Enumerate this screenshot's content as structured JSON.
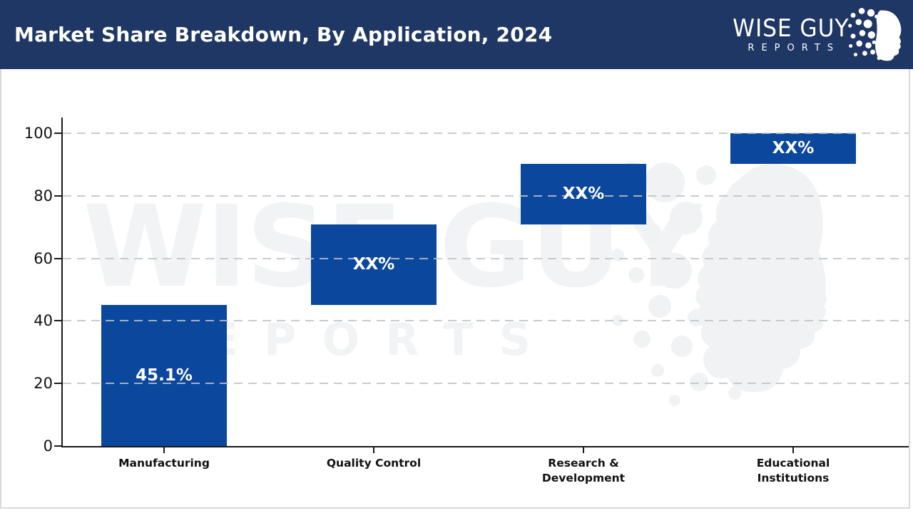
{
  "header": {
    "title": "Market Share Breakdown, By Application, 2024",
    "logo": {
      "name": "WISE GUY",
      "sub": "REPORTS"
    }
  },
  "watermark": {
    "line1": "WISE GUY",
    "line2": "REPORTS"
  },
  "colors": {
    "header_bg": "#1F3765",
    "bar_blue": "#0A479D",
    "bar_label": "#ffffff",
    "grid_gray": "#d9d9d9",
    "axis_black": "#1a1a1a",
    "watermark_gray": "#f2f3f5"
  },
  "chart_data": {
    "type": "bar",
    "variant": "waterfall",
    "title": "Market Share Breakdown, By Application, 2024",
    "categories": [
      "Manufacturing",
      "Quality Control",
      "Research & Development",
      "Educational Institutions"
    ],
    "category_label_lines": [
      [
        "Manufacturing"
      ],
      [
        "Quality Control"
      ],
      [
        "Research &",
        "Development"
      ],
      [
        "Educational",
        "Institutions"
      ]
    ],
    "segments": [
      {
        "category": "Manufacturing",
        "start": 0,
        "end": 45.1,
        "label": "45.1%",
        "estimated_value": 45.1
      },
      {
        "category": "Quality Control",
        "start": 45.1,
        "end": 70.9,
        "label": "XX%",
        "estimated_value": 25.8
      },
      {
        "category": "Research & Development",
        "start": 70.9,
        "end": 90.3,
        "label": "XX%",
        "estimated_value": 19.4
      },
      {
        "category": "Educational Institutions",
        "start": 90.3,
        "end": 100,
        "label": "XX%",
        "estimated_value": 9.7
      }
    ],
    "ylim": [
      0,
      100
    ],
    "yticks": [
      "0",
      "20",
      "40",
      "60",
      "80",
      "100"
    ],
    "grid": {
      "horizontal": true,
      "style": "dashed",
      "drawn_over_bars": true
    },
    "legend": "none",
    "xlabel": "",
    "ylabel": ""
  }
}
